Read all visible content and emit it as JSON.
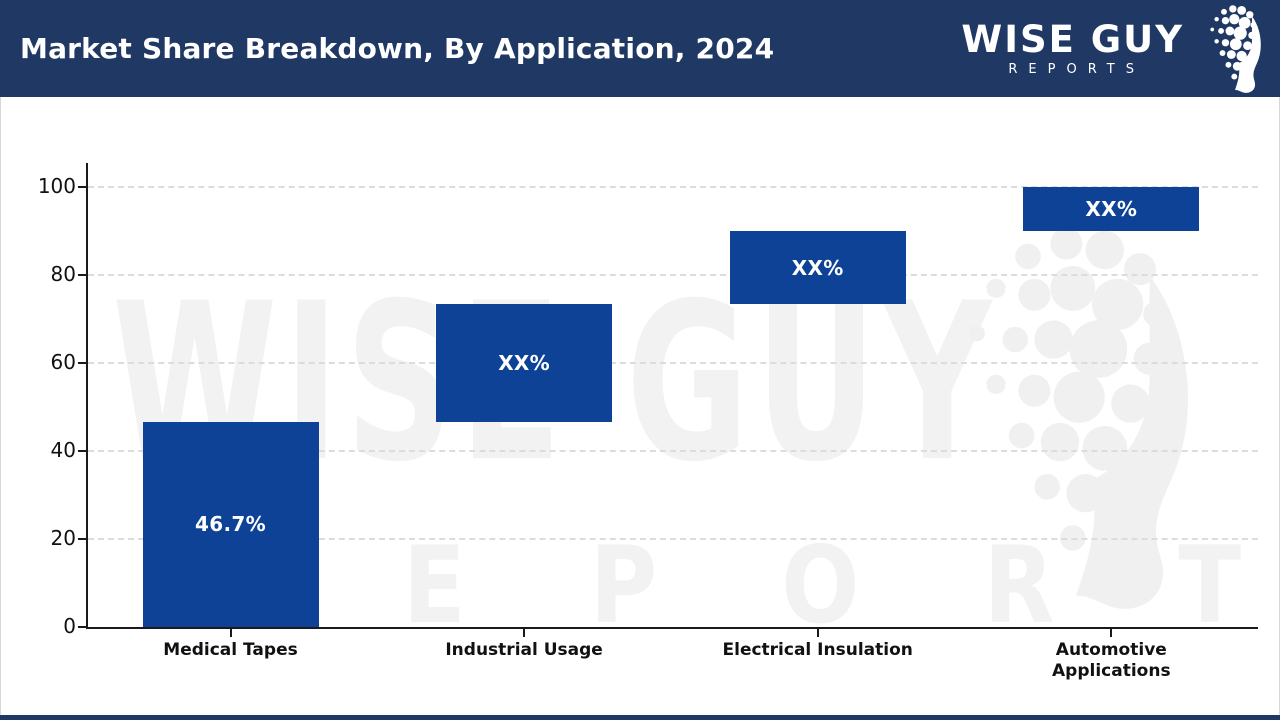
{
  "header": {
    "title": "Market Share Breakdown, By Application, 2024",
    "logo": {
      "line1": "WISE GUY",
      "line2": "REPORTS"
    }
  },
  "watermark": {
    "line1": "WISE GUY",
    "line2": "R E P O R T S"
  },
  "colors": {
    "header_bg": "#203864",
    "bar": "#0d4296",
    "bar_label": "#ffffff",
    "grid": "#dcdcdc",
    "axis": "#1a1a1a",
    "watermark": "#f2f2f2"
  },
  "chart_data": {
    "type": "bar",
    "subtype": "waterfall",
    "title": "Market Share Breakdown, By Application, 2024",
    "categories": [
      "Medical Tapes",
      "Industrial Usage",
      "Electrical Insulation",
      "Automotive Applications"
    ],
    "segments": [
      {
        "category": "Medical Tapes",
        "start": 0,
        "end": 46.7,
        "value_label": "46.7%"
      },
      {
        "category": "Industrial Usage",
        "start": 46.7,
        "end": 73.4,
        "value_label": "XX%"
      },
      {
        "category": "Electrical Insulation",
        "start": 73.4,
        "end": 90.0,
        "value_label": "XX%"
      },
      {
        "category": "Automotive Applications",
        "start": 90.0,
        "end": 100.0,
        "value_label": "XX%"
      }
    ],
    "y_ticks": [
      0,
      20,
      40,
      60,
      80,
      100
    ],
    "ylim": [
      0,
      105
    ],
    "xlabel": "",
    "ylabel": "",
    "grid": "horizontal-dashed",
    "legend": "none"
  }
}
